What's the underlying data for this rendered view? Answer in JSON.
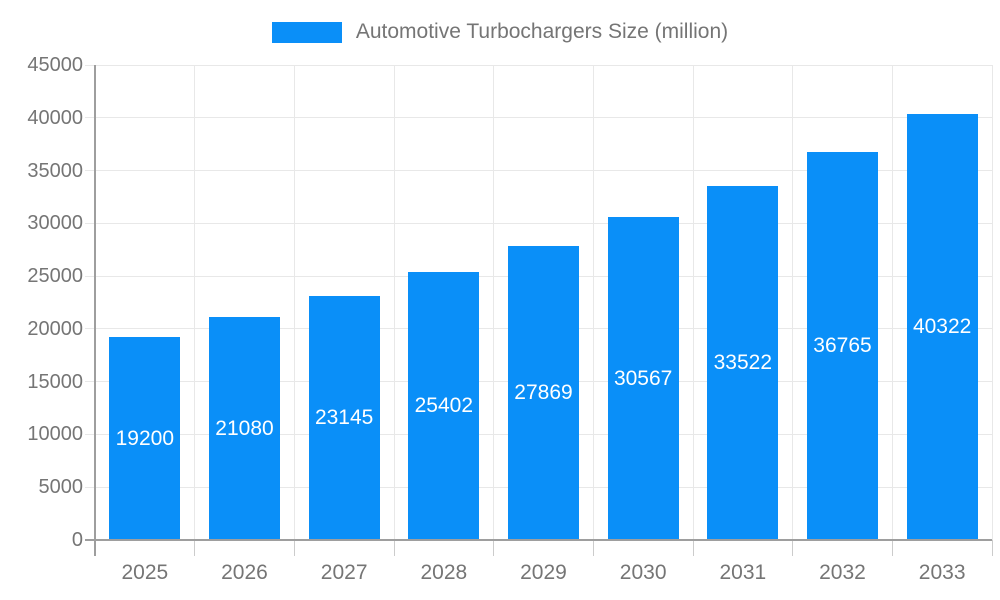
{
  "chart_data": {
    "type": "bar",
    "title": "Automotive Turbochargers Size (million)",
    "legend": {
      "label": "Automotive Turbochargers Size (million)",
      "position": "top-center"
    },
    "categories": [
      "2025",
      "2026",
      "2027",
      "2028",
      "2029",
      "2030",
      "2031",
      "2032",
      "2033"
    ],
    "series": [
      {
        "name": "Automotive Turbochargers Size (million)",
        "values": [
          19200,
          21080,
          23145,
          25402,
          27869,
          30567,
          33522,
          36765,
          40322
        ]
      }
    ],
    "xlabel": "",
    "ylabel": "",
    "ylim": [
      0,
      45000
    ],
    "ytick_step": 5000,
    "yticks": [
      0,
      5000,
      10000,
      15000,
      20000,
      25000,
      30000,
      35000,
      40000,
      45000
    ],
    "grid": true,
    "bar_label_position": "inside-center",
    "colors": {
      "bar": "#0A8FF8",
      "bar_label_text": "#FFFFFF",
      "axis_text": "#757575",
      "legend_text": "#757575",
      "grid_line": "#E8E8E8",
      "axis_line": "#9E9E9E",
      "background": "#FFFFFF"
    }
  }
}
